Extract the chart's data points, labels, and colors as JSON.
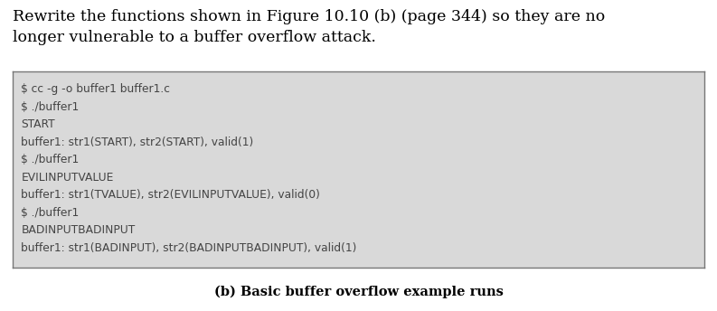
{
  "title_text": "Rewrite the functions shown in Figure 10.10 (b) (page 344) so they are no\nlonger vulnerable to a buffer overflow attack.",
  "title_fontsize": 12.5,
  "title_color": "#000000",
  "title_font": "DejaVu Serif",
  "code_lines": [
    "$ cc -g -o buffer1 buffer1.c",
    "$ ./buffer1",
    "START",
    "buffer1: str1(START), str2(START), valid(1)",
    "$ ./buffer1",
    "EVILINPUTVALUE",
    "buffer1: str1(TVALUE), str2(EVILINPUTVALUE), valid(0)",
    "$ ./buffer1",
    "BADINPUTBADINPUT",
    "buffer1: str1(BADINPUT), str2(BADINPUTBADINPUT), valid(1)"
  ],
  "code_fontsize": 8.8,
  "code_color": "#444444",
  "box_bg_color": "#d9d9d9",
  "box_edge_color": "#777777",
  "caption_text": "(b) Basic buffer overflow example runs",
  "caption_fontsize": 10.5,
  "caption_font": "DejaVu Serif",
  "caption_color": "#000000",
  "bg_color": "#ffffff",
  "fig_width": 7.93,
  "fig_height": 3.44,
  "dpi": 100
}
